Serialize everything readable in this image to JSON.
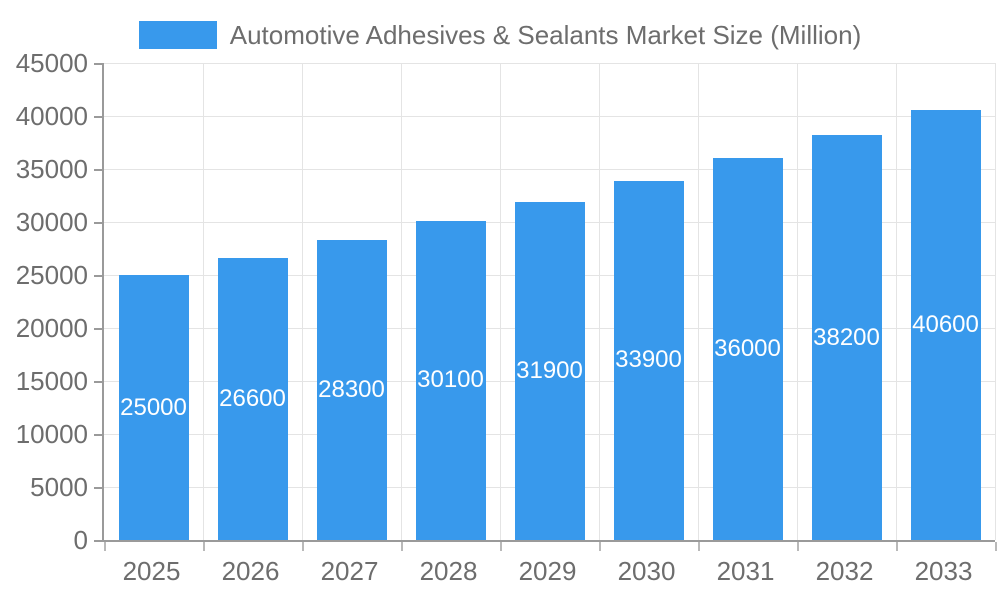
{
  "legend": {
    "label": "Automotive Adhesives & Sealants Market Size (Million)"
  },
  "chart_data": {
    "type": "bar",
    "title": "Automotive Adhesives & Sealants Market Size (Million)",
    "categories": [
      "2025",
      "2026",
      "2027",
      "2028",
      "2029",
      "2030",
      "2031",
      "2032",
      "2033"
    ],
    "values": [
      25000,
      26600,
      28300,
      30100,
      31900,
      33900,
      36000,
      38200,
      40600
    ],
    "value_labels": [
      "25000",
      "26600",
      "28300",
      "30100",
      "31900",
      "33900",
      "36000",
      "38200",
      "40600"
    ],
    "xlabel": "",
    "ylabel": "",
    "ylim": [
      0,
      45000
    ],
    "ytick_step": 5000,
    "yticks": [
      0,
      5000,
      10000,
      15000,
      20000,
      25000,
      30000,
      35000,
      40000,
      45000
    ],
    "grid": true,
    "legend_position": "top-center",
    "value_label_position": "center-inside-bar",
    "colors": {
      "bar": "#3899ec",
      "value_label": "#ffffff",
      "gridline": "#e4e4e4",
      "axis_line": "#9a9a9a",
      "tick": "#b9b9b9",
      "text": "#6d6d6d",
      "background": "#ffffff"
    }
  }
}
